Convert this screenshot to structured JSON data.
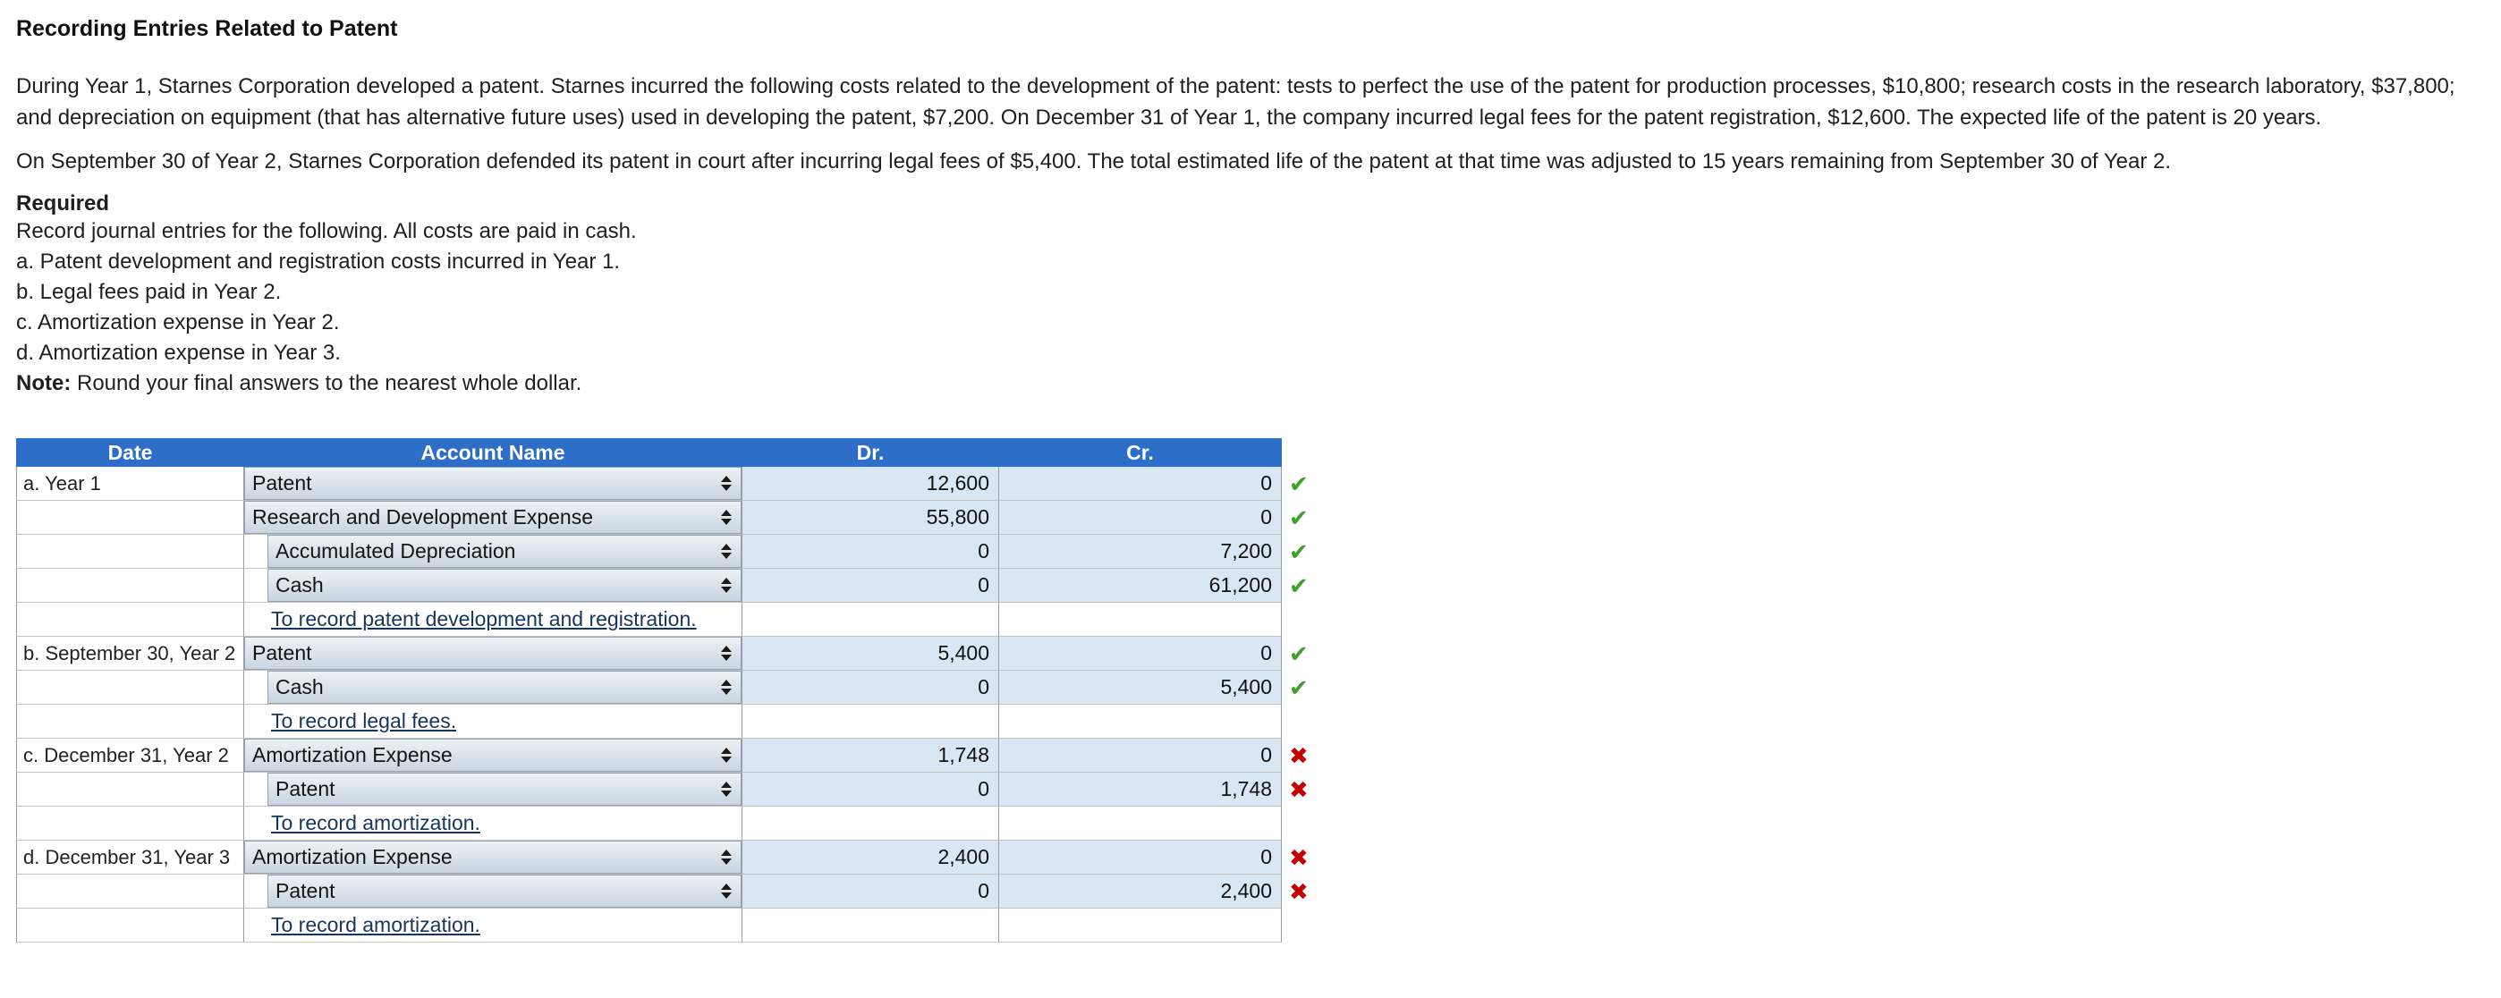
{
  "intro": {
    "title": "Recording Entries Related to Patent",
    "paragraphs": [
      "During Year 1, Starnes Corporation developed a patent. Starnes incurred the following costs related to the development of the patent: tests to perfect the use of the patent for production processes, $10,800; research costs in the research laboratory, $37,800; and depreciation on equipment (that has alternative future uses) used in developing the patent, $7,200. On December 31 of Year 1, the company incurred legal fees for the patent registration, $12,600. The expected life of the patent is 20 years.",
      "On September 30 of Year 2, Starnes Corporation defended its patent in court after incurring legal fees of $5,400. The total estimated life of the patent at that time was adjusted to 15 years remaining from September 30 of Year 2."
    ]
  },
  "required": {
    "label": "Required",
    "intro": "Record journal entries for the following. All costs are paid in cash.",
    "items": [
      "a. Patent development and registration costs incurred in Year 1.",
      "b. Legal fees paid in Year 2.",
      "c. Amortization expense in Year 2.",
      "d. Amortization expense in Year 3."
    ],
    "note_label": "Note:",
    "note_text": " Round your final answers to the nearest whole dollar."
  },
  "table": {
    "headers": [
      "Date",
      "Account Name",
      "Dr.",
      "Cr."
    ],
    "rows": [
      {
        "date": "a. Year 1",
        "account": "Patent",
        "indent": false,
        "dr": "12,600",
        "cr": "0",
        "mark": "correct"
      },
      {
        "date": "",
        "account": "Research and Development Expense",
        "indent": false,
        "dr": "55,800",
        "cr": "0",
        "mark": "correct"
      },
      {
        "date": "",
        "account": "Accumulated Depreciation",
        "indent": true,
        "dr": "0",
        "cr": "7,200",
        "mark": "correct"
      },
      {
        "date": "",
        "account": "Cash",
        "indent": true,
        "dr": "0",
        "cr": "61,200",
        "mark": "correct"
      },
      {
        "desc": "To record patent development and registration."
      },
      {
        "date": "b. September 30, Year 2",
        "account": "Patent",
        "indent": false,
        "dr": "5,400",
        "cr": "0",
        "mark": "correct"
      },
      {
        "date": "",
        "account": "Cash",
        "indent": true,
        "dr": "0",
        "cr": "5,400",
        "mark": "correct"
      },
      {
        "desc": "To record legal fees."
      },
      {
        "date": "c. December 31, Year 2",
        "account": "Amortization Expense",
        "indent": false,
        "dr": "1,748",
        "cr": "0",
        "mark": "incorrect"
      },
      {
        "date": "",
        "account": "Patent",
        "indent": true,
        "dr": "0",
        "cr": "1,748",
        "mark": "incorrect"
      },
      {
        "desc": "To record amortization."
      },
      {
        "date": "d. December 31, Year 3",
        "account": "Amortization Expense",
        "indent": false,
        "dr": "2,400",
        "cr": "0",
        "mark": "incorrect"
      },
      {
        "date": "",
        "account": "Patent",
        "indent": true,
        "dr": "0",
        "cr": "2,400",
        "mark": "incorrect"
      },
      {
        "desc": "To record amortization."
      }
    ]
  },
  "icons": {
    "check_glyph": "✔",
    "x_glyph": "✖",
    "stepper": "up-down-arrows"
  },
  "colors": {
    "header_bg": "#2d6fc8",
    "input_bg": "#d9e7f5",
    "desc_text": "#17365d",
    "correct": "#3fa02c",
    "incorrect": "#c40000"
  }
}
